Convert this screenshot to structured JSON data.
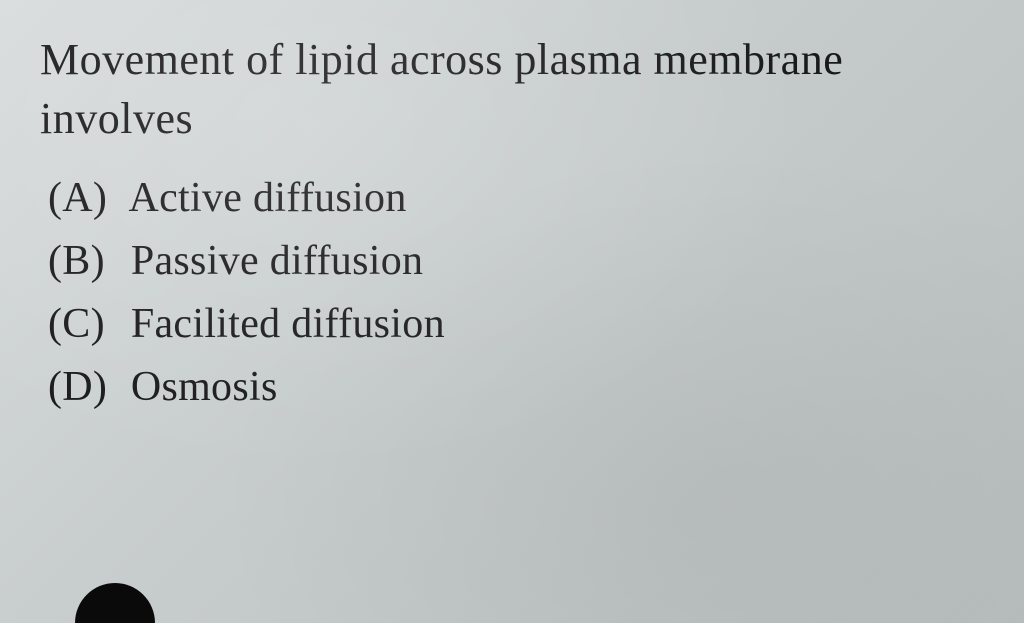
{
  "question": {
    "line1": "Movement of lipid across plasma membrane",
    "line2": "involves",
    "fontsize": 44,
    "color": "#1a1a1a"
  },
  "options": [
    {
      "label": "(A)",
      "text": "Active diffusion"
    },
    {
      "label": "(B)",
      "text": "Passive diffusion"
    },
    {
      "label": "(C)",
      "text": "Facilited diffusion"
    },
    {
      "label": "(D)",
      "text": "Osmosis"
    }
  ],
  "option_fontsize": 42,
  "background_color": "#c8cdcd",
  "text_color": "#1a1a1a"
}
